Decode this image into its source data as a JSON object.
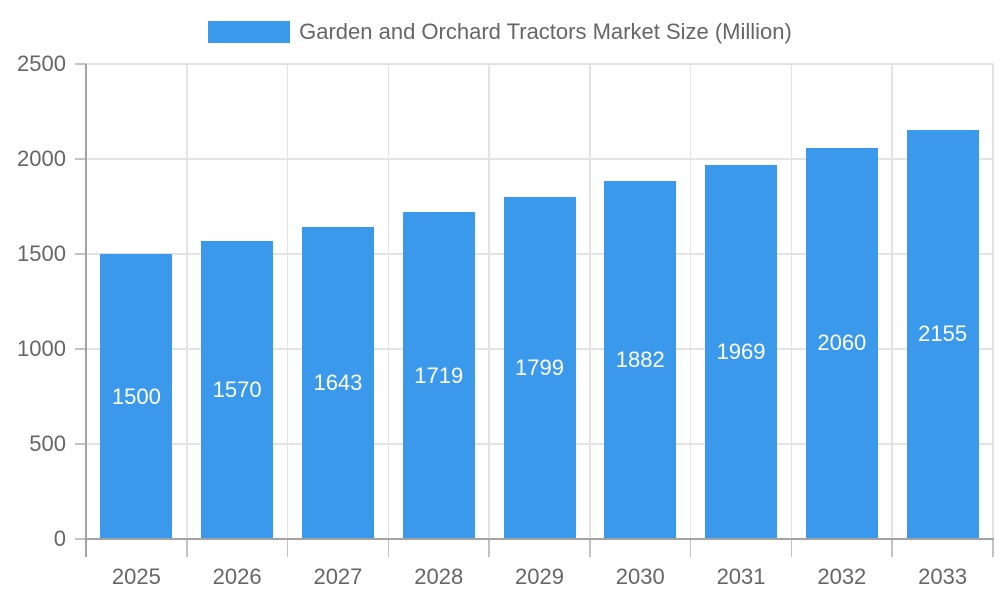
{
  "legend": {
    "label": "Garden and Orchard Tractors Market Size (Million)"
  },
  "colors": {
    "bar": "#3B99EC",
    "axis": "#a3a3a3",
    "tick": "#c2c2c2",
    "grid": "#e3e3e3",
    "label_text": "#666666",
    "bar_label": "#ffffff"
  },
  "chart_data": {
    "type": "bar",
    "title": "Garden and Orchard Tractors Market Size (Million)",
    "categories": [
      "2025",
      "2026",
      "2027",
      "2028",
      "2029",
      "2030",
      "2031",
      "2032",
      "2033"
    ],
    "values": [
      1500,
      1570,
      1643,
      1719,
      1799,
      1882,
      1969,
      2060,
      2155
    ],
    "xlabel": "",
    "ylabel": "",
    "ylim": [
      0,
      2500
    ],
    "yticks": [
      0,
      500,
      1000,
      1500,
      2000,
      2500
    ],
    "grid": true,
    "legend_position": "top",
    "value_labels": "inside-center"
  }
}
